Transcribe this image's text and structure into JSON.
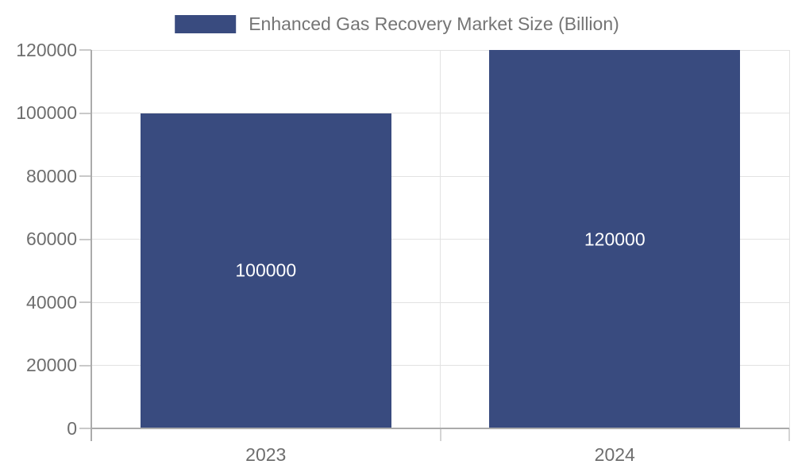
{
  "legend": {
    "label": "Enhanced Gas Recovery Market Size (Billion)"
  },
  "chart_data": {
    "type": "bar",
    "categories": [
      "2023",
      "2024"
    ],
    "series": [
      {
        "name": "Enhanced Gas Recovery Market Size (Billion)",
        "values": [
          100000,
          120000
        ]
      }
    ],
    "bar_value_labels": [
      "100000",
      "120000"
    ],
    "title": "",
    "xlabel": "",
    "ylabel": "",
    "ylim": [
      0,
      120000
    ],
    "yticks": [
      0,
      20000,
      40000,
      60000,
      80000,
      100000,
      120000
    ],
    "grid": true,
    "legend_position": "top-center"
  },
  "colors": {
    "bar": "#394B7F",
    "axis_line": "#ababab",
    "grid_line": "#e2e2e2",
    "y_tick_mark": "#c9c9c9",
    "x_tick_mark": "#d4d4d4",
    "axis_text": "#6e6e6e",
    "legend_text": "#757575",
    "bar_label_text": "#ffffff",
    "background": "#ffffff"
  }
}
